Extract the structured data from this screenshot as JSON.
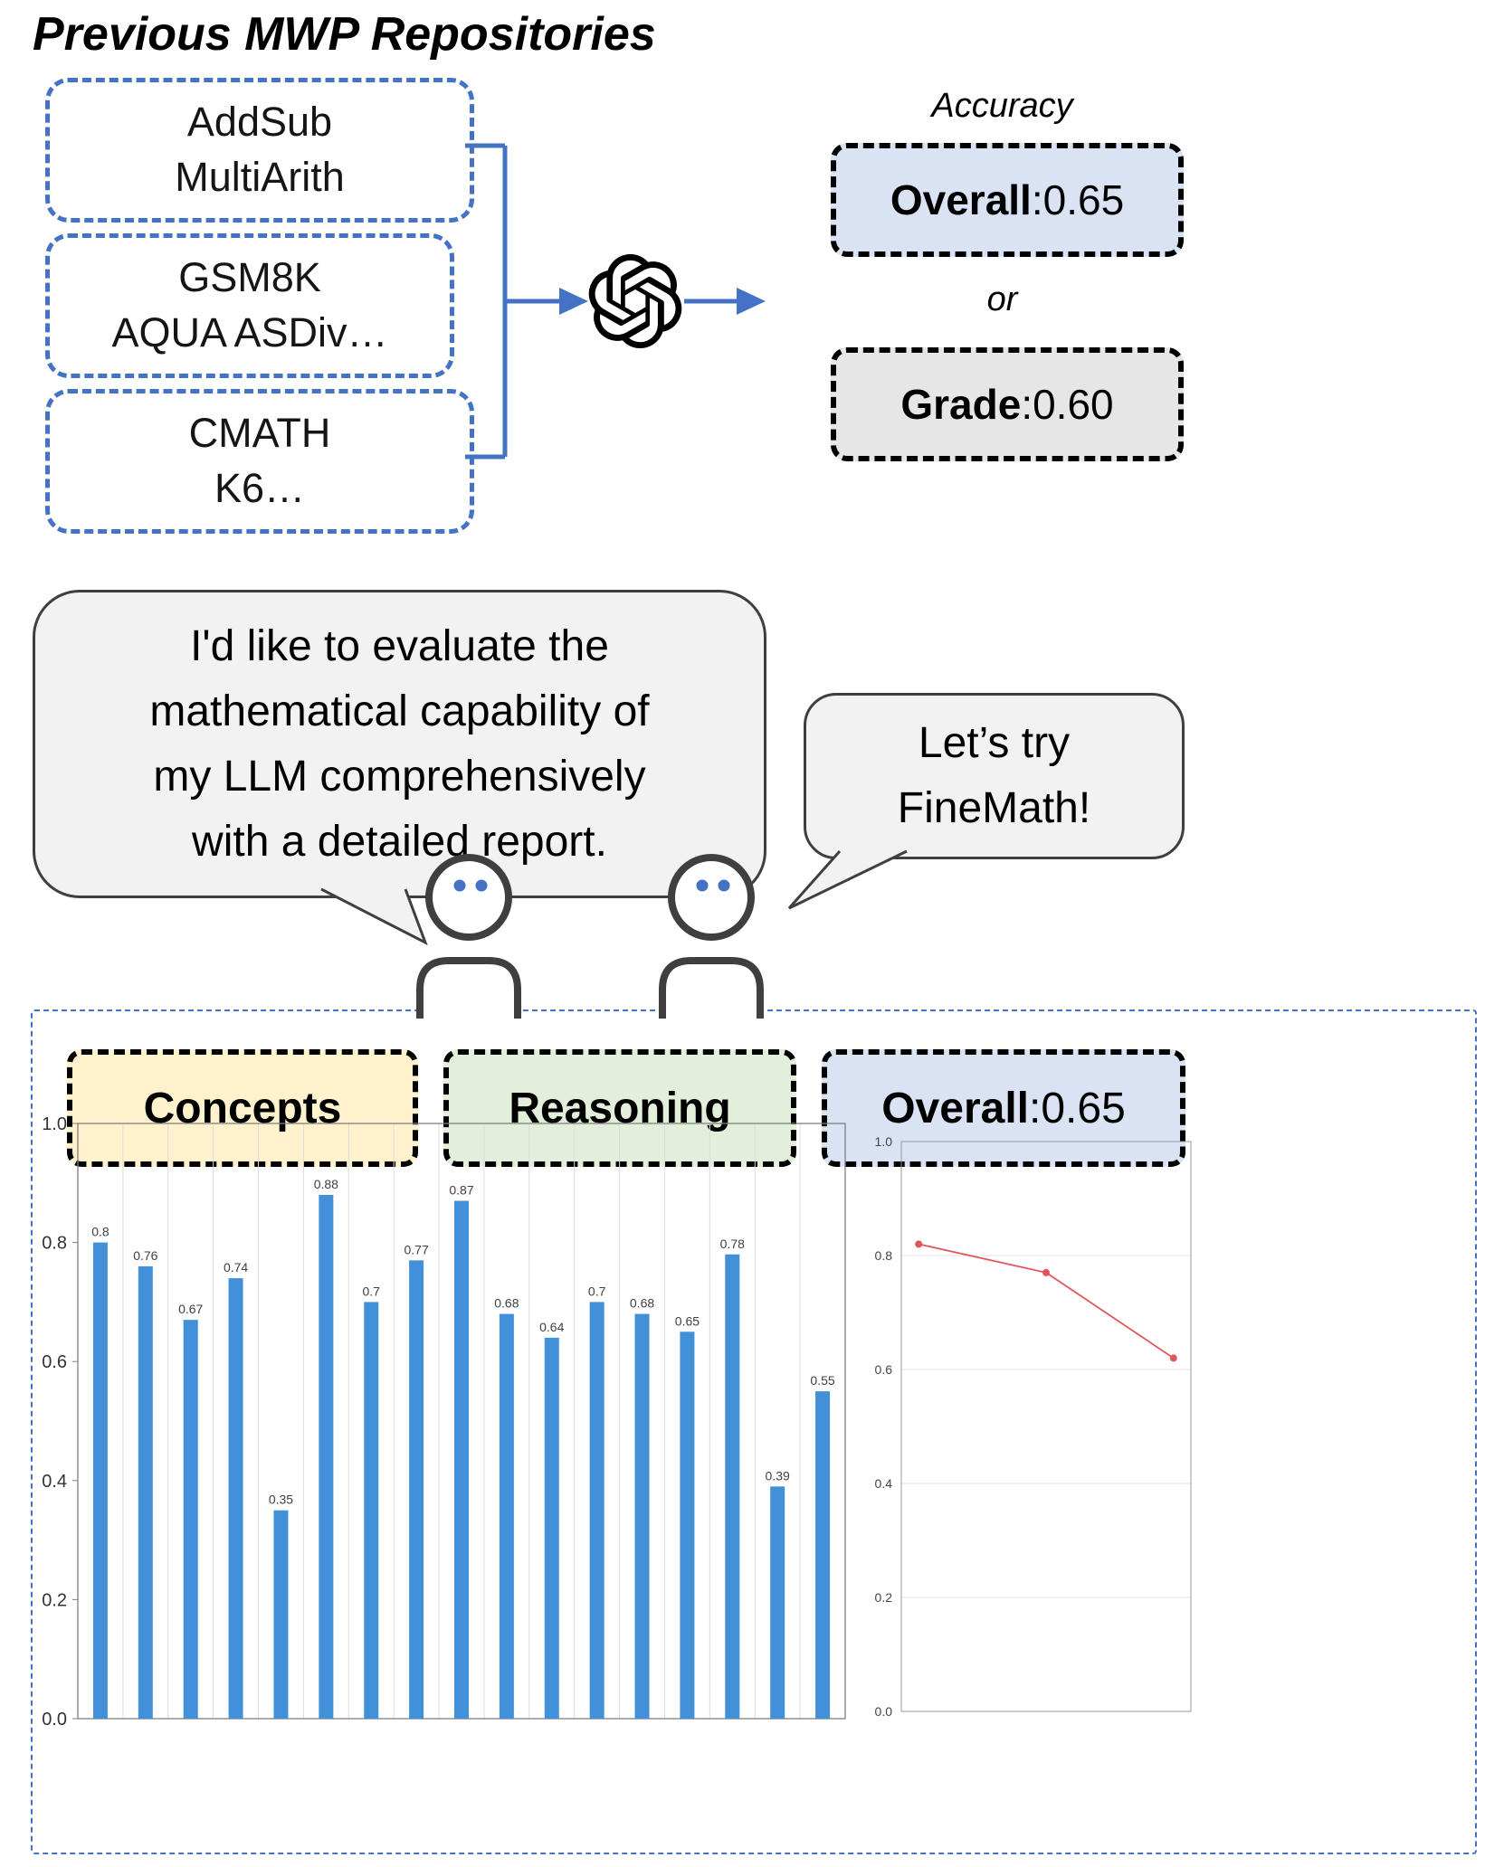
{
  "header": {
    "title": "Previous MWP Repositories"
  },
  "repositories": [
    {
      "line1": "AddSub",
      "line2": "MultiArith"
    },
    {
      "line1": "GSM8K",
      "line2": "AQUA ASDiv…"
    },
    {
      "line1": "CMATH",
      "line2": "K6…"
    }
  ],
  "evaluation": {
    "accuracy_label": "Accuracy",
    "or_label": "or",
    "overall": {
      "label": "Overall",
      "value": ":0.65"
    },
    "grade": {
      "label": "Grade",
      "value": ":0.60"
    }
  },
  "dialog": {
    "user1_lines": [
      "I'd like to evaluate the",
      "mathematical capability of",
      "my LLM comprehensively",
      "with a detailed report."
    ],
    "user2_lines": [
      "Let’s try",
      "FineMath!"
    ]
  },
  "finemath_panel": {
    "concepts_label": "Concepts",
    "reasoning_label": "Reasoning",
    "overall_label": "Overall",
    "overall_value": ":0.65"
  },
  "colors": {
    "flow_blue": "#4472c4",
    "overall_bg": "#dae3f3",
    "grade_bg": "#e7e6e6",
    "concepts_bg": "#fff2cc",
    "reasoning_bg": "#e2efda",
    "bubble_bg": "#f2f2f2",
    "outline_dark": "#3f3f3f"
  },
  "chart_data": [
    {
      "type": "bar",
      "title": "",
      "categories": [
        "",
        "",
        "",
        "",
        "",
        "",
        "",
        "",
        "",
        "",
        "",
        "",
        "",
        "",
        "",
        "",
        ""
      ],
      "values": [
        0.8,
        0.76,
        0.67,
        0.74,
        0.35,
        0.88,
        0.7,
        0.77,
        0.87,
        0.68,
        0.64,
        0.7,
        0.68,
        0.65,
        0.78,
        0.39,
        0.55
      ],
      "value_labels": [
        "0.8",
        "0.76",
        "0.67",
        "0.74",
        "0.35",
        "0.88",
        "0.7",
        "0.77",
        "0.87",
        "0.68",
        "0.64",
        "0.7",
        "0.68",
        "0.65",
        "0.78",
        "0.39",
        "0.55"
      ],
      "ylim": [
        0.0,
        1.0
      ],
      "yticks": [
        "0.0",
        "0.2",
        "0.4",
        "0.6",
        "0.8",
        "1.0"
      ],
      "bar_color": "#4190d8",
      "grid": "vertical",
      "legend": "none"
    },
    {
      "type": "line",
      "title": "",
      "x": [
        1,
        2,
        3
      ],
      "values": [
        0.82,
        0.77,
        0.62
      ],
      "ylim": [
        0.0,
        1.0
      ],
      "yticks": [
        "0.0",
        "0.2",
        "0.4",
        "0.6",
        "0.8",
        "1.0"
      ],
      "line_color": "#e15759",
      "grid": "horizontal",
      "legend": "none"
    }
  ]
}
